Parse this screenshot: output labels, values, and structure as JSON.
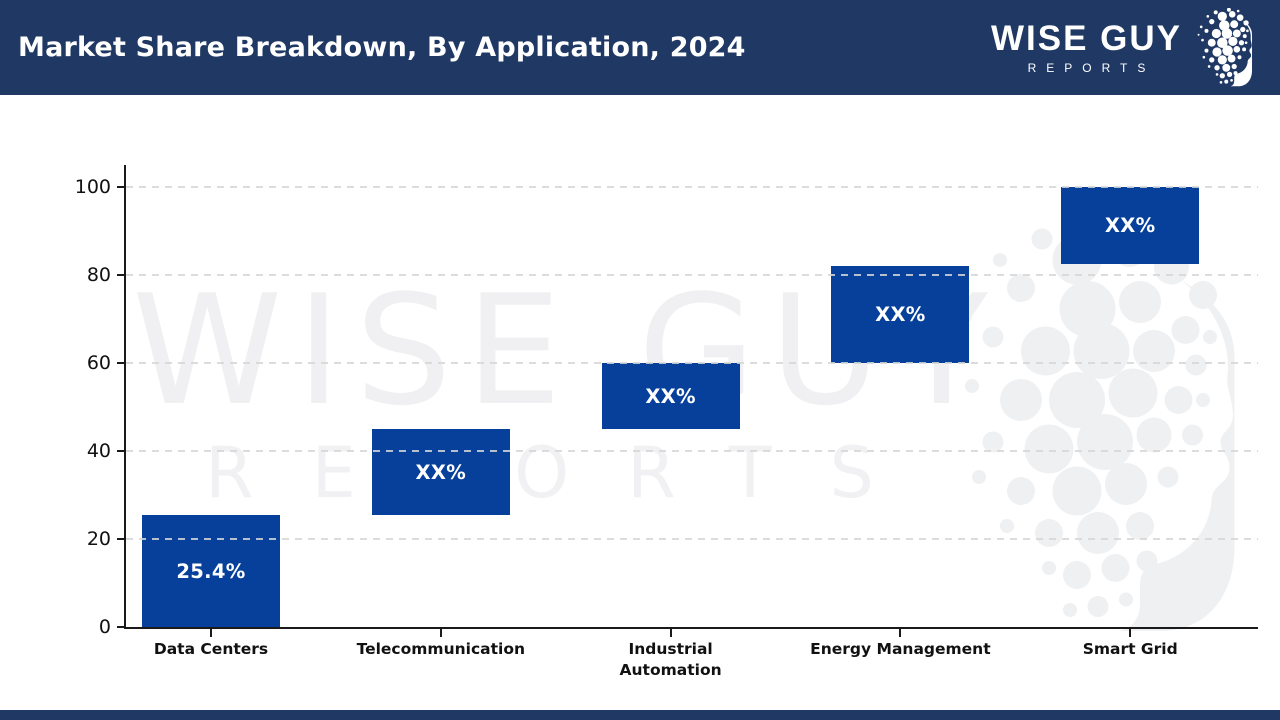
{
  "header": {
    "title": "Market Share Breakdown, By Application, 2024",
    "logo": {
      "name": "WISE GUY",
      "sub": "REPORTS"
    }
  },
  "watermark": {
    "name": "WISE GUY",
    "sub": "REPORTS"
  },
  "chart_data": {
    "type": "bar",
    "subtype": "waterfall",
    "title": "Market Share Breakdown, By Application, 2024",
    "categories": [
      "Data Centers",
      "Telecommunication",
      "Industrial\nAutomation",
      "Energy Management",
      "Smart Grid"
    ],
    "series": [
      {
        "category": "Data Centers",
        "label": "25.4%",
        "start": 0,
        "end": 25.4
      },
      {
        "category": "Telecommunication",
        "label": "XX%",
        "start": 25.4,
        "end": 45
      },
      {
        "category": "Industrial Automation",
        "label": "XX%",
        "start": 45,
        "end": 60
      },
      {
        "category": "Energy Management",
        "label": "XX%",
        "start": 60,
        "end": 82
      },
      {
        "category": "Smart Grid",
        "label": "XX%",
        "start": 82.5,
        "end": 100
      }
    ],
    "xlabel": "",
    "ylabel": "",
    "yticks": [
      0,
      20,
      40,
      60,
      80,
      100
    ],
    "ylim": [
      0,
      105
    ],
    "grid": {
      "axis": "y",
      "style": "dashed",
      "color": "#d9d9d9"
    },
    "legend": false,
    "bar_color": "#06409a"
  },
  "colors": {
    "header_bg": "#1f3864",
    "footer_bg": "#1f3864",
    "bar": "#06409a",
    "axis": "#1a1a1a",
    "grid": "#d9d9d9",
    "watermark": "#f0f0f2"
  }
}
